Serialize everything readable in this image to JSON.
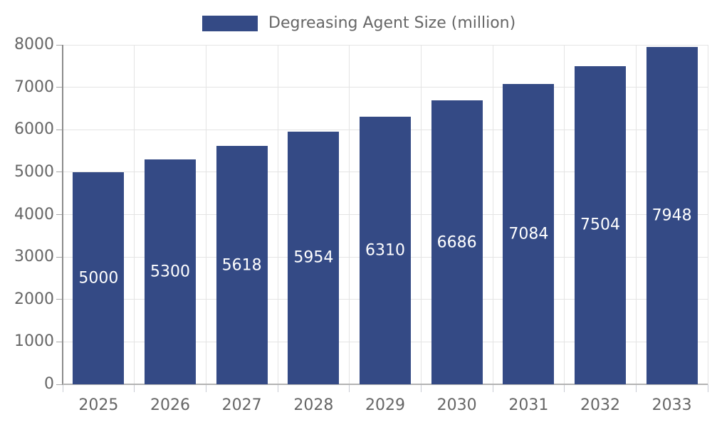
{
  "chart_data": {
    "type": "bar",
    "title": "Degreasing Agent Size (million)",
    "legend": [
      "Degreasing Agent Size (million)"
    ],
    "legend_position": "top",
    "categories": [
      "2025",
      "2026",
      "2027",
      "2028",
      "2029",
      "2030",
      "2031",
      "2032",
      "2033"
    ],
    "series": [
      {
        "name": "Degreasing Agent Size (million)",
        "values": [
          5000,
          5300,
          5618,
          5954,
          6310,
          6686,
          7084,
          7504,
          7948
        ]
      }
    ],
    "xlabel": "",
    "ylabel": "",
    "ylim": [
      0,
      8000
    ],
    "ytick_step": 1000,
    "grid": true,
    "value_labels": "inside-center"
  },
  "colors": {
    "bar": "#344A85",
    "axis_label": "#666666",
    "legend_text": "#666666",
    "value_label": "#ffffff",
    "grid_line": "#e4e4e4",
    "y_axis_line": "#8c8c8c",
    "x_axis_line": "#b3b3b3",
    "y_tick": "#a6a6a6",
    "x_tick": "#c8cbd3",
    "background": "#ffffff"
  }
}
